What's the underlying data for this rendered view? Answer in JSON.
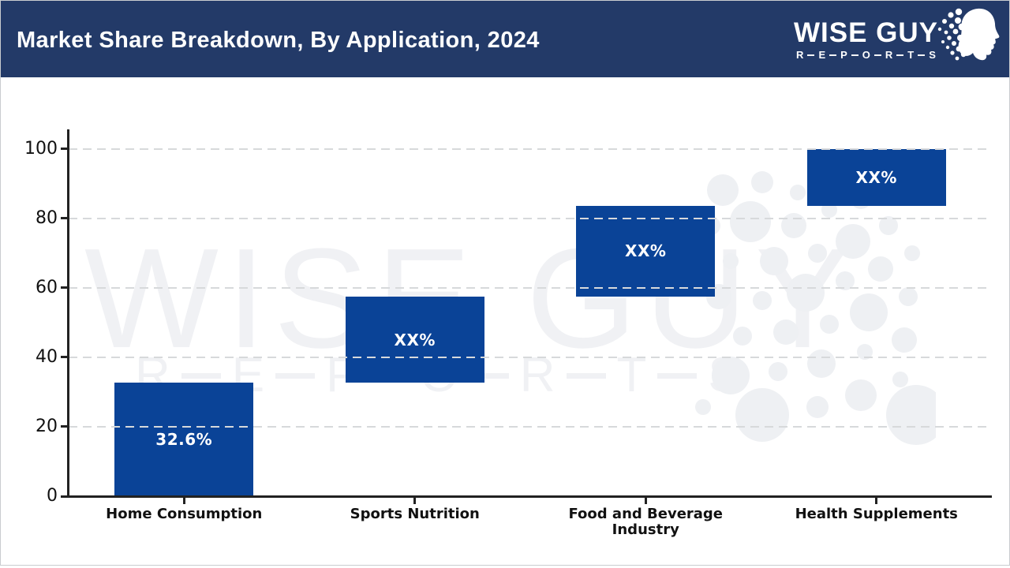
{
  "header": {
    "title": "Market Share Breakdown, By Application, 2024",
    "logo": {
      "name": "WISE GUY",
      "reports_letters": [
        "R",
        "E",
        "P",
        "O",
        "R",
        "T",
        "S"
      ],
      "face_icon": "face-profile-dots-icon"
    }
  },
  "watermark": {
    "name": "WISE GUY",
    "reports_letters": [
      "R",
      "E",
      "P",
      "O",
      "R",
      "T",
      "S"
    ],
    "dots_icon": "dots-head-watermark"
  },
  "chart_data": {
    "type": "bar",
    "subtype": "floating-waterfall",
    "title": "Market Share Breakdown, By Application, 2024",
    "categories": [
      "Home Consumption",
      "Sports Nutrition",
      "Food and Beverage Industry",
      "Health Supplements"
    ],
    "segments": [
      {
        "category": "Home Consumption",
        "start": 0,
        "end": 32.6,
        "label": "32.6%"
      },
      {
        "category": "Sports Nutrition",
        "start": 32.6,
        "end": 57.4,
        "label": "XX%"
      },
      {
        "category": "Food and Beverage Industry",
        "start": 57.4,
        "end": 83.6,
        "label": "XX%"
      },
      {
        "category": "Health Supplements",
        "start": 83.6,
        "end": 100,
        "label": "XX%"
      }
    ],
    "ylim": [
      0,
      100
    ],
    "yticks": [
      0,
      20,
      40,
      60,
      80,
      100
    ],
    "grid": "horizontal dashed",
    "legend": "none",
    "colors": {
      "bar": "#0a4397",
      "bar_label": "#ffffff",
      "axis": "#222222",
      "tick_label": "#111111",
      "gridline": "#d7d9db",
      "header_bg": "#233a68",
      "header_text": "#ffffff",
      "watermark": "#f0f1f4"
    }
  }
}
